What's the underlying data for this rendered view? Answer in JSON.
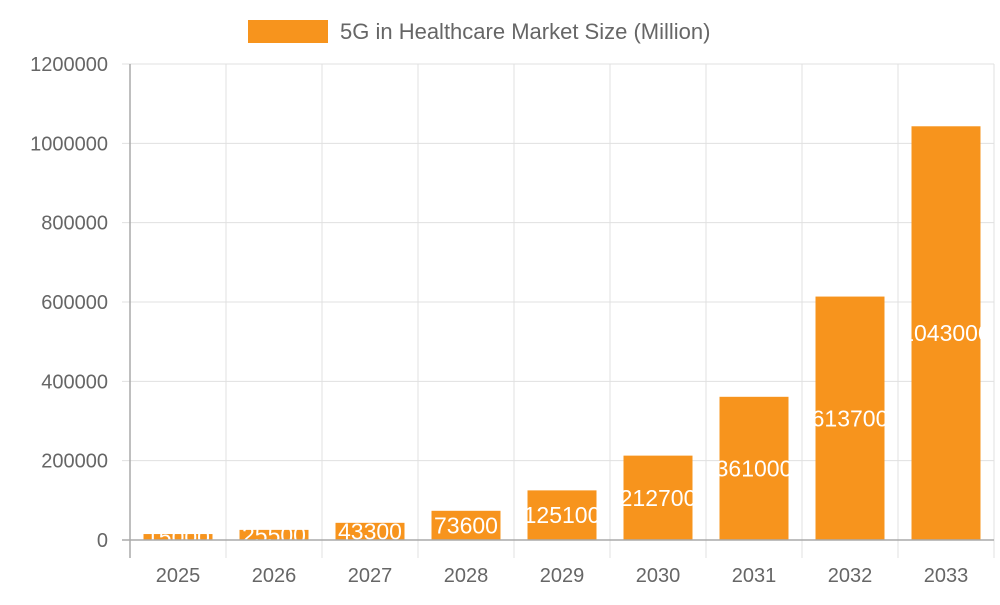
{
  "chart_data": {
    "type": "bar",
    "title": "",
    "xlabel": "",
    "ylabel": "",
    "categories": [
      "2025",
      "2026",
      "2027",
      "2028",
      "2029",
      "2030",
      "2031",
      "2032",
      "2033"
    ],
    "series": [
      {
        "name": "5G in Healthcare Market Size (Million)",
        "values": [
          15000,
          25500,
          43300,
          73600,
          125100,
          212700,
          361000,
          613700,
          1043000
        ],
        "color": "#f7941d"
      }
    ],
    "ylim": [
      0,
      1200000
    ],
    "yticks": [
      "0",
      "200000",
      "400000",
      "600000",
      "800000",
      "1000000",
      "1200000"
    ],
    "grid": true,
    "legend_position": "top",
    "data_labels": true,
    "data_label_color": "#ffffff"
  }
}
